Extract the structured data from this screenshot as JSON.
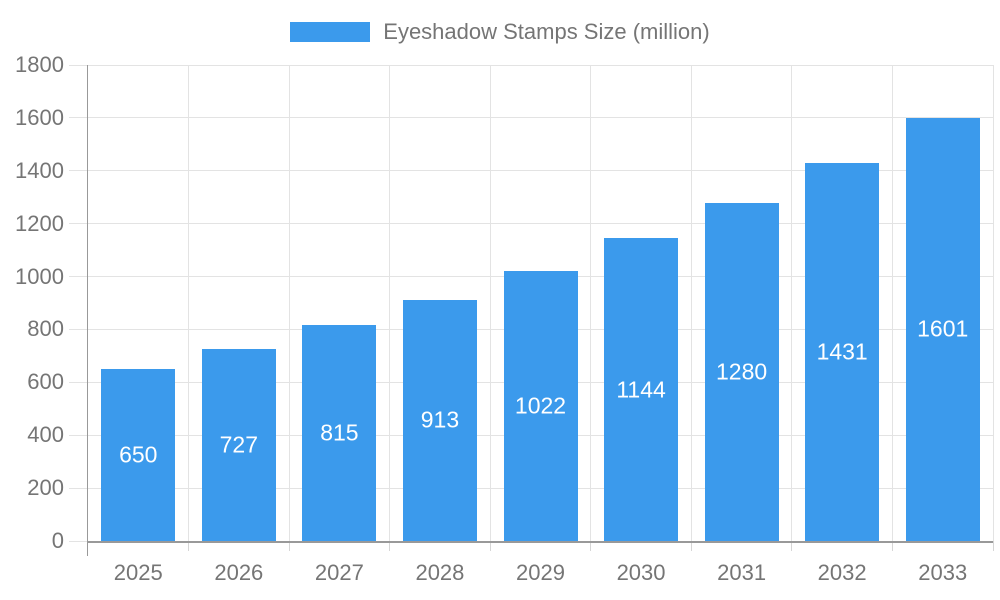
{
  "legend": {
    "label": "Eyeshadow Stamps Size (million)"
  },
  "colors": {
    "bar": "#3B9AEC",
    "axis_line": "#999999",
    "grid_line": "#E3E3E3",
    "tick_line": "#D6D6D6",
    "axis_text": "#757575",
    "legend_text": "#757575",
    "value_text": "#FFFFFF",
    "background": "#FFFFFF"
  },
  "chart_data": {
    "type": "bar",
    "title": "Eyeshadow Stamps Size (million)",
    "categories": [
      "2025",
      "2026",
      "2027",
      "2028",
      "2029",
      "2030",
      "2031",
      "2032",
      "2033"
    ],
    "values": [
      650,
      727,
      815,
      913,
      1022,
      1144,
      1280,
      1431,
      1601
    ],
    "xlabel": "",
    "ylabel": "",
    "ylim": [
      0,
      1800
    ],
    "ytick_step": 200,
    "ytick_labels": [
      "0",
      "200",
      "400",
      "600",
      "800",
      "1000",
      "1200",
      "1400",
      "1600",
      "1800"
    ],
    "grid": true,
    "legend_position": "top",
    "value_labels": "inside-center"
  }
}
